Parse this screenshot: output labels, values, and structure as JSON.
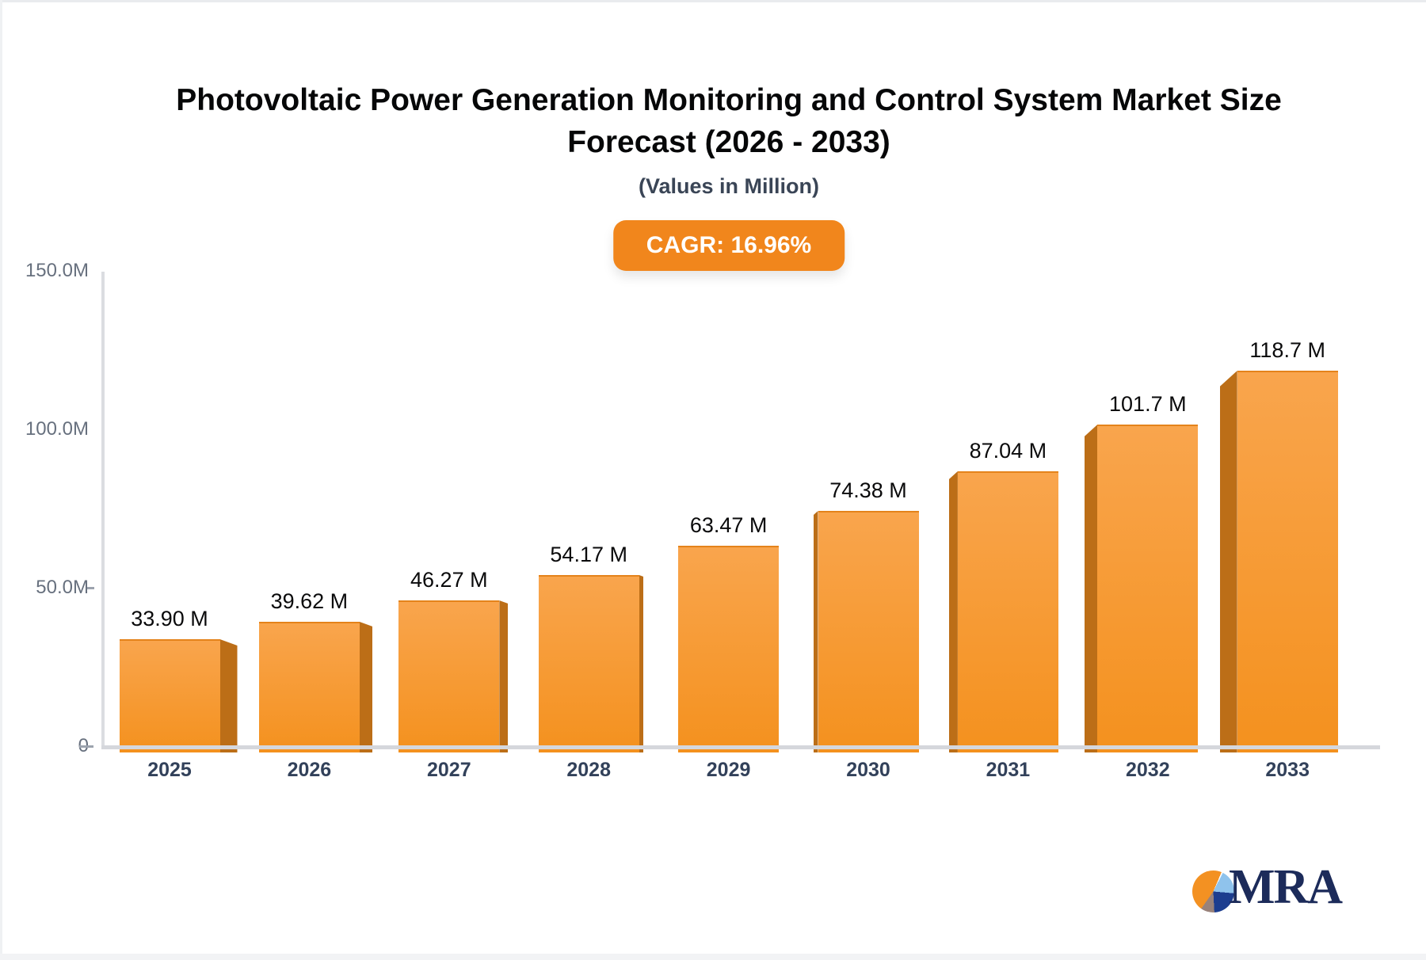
{
  "header": {
    "title_line1": "Photovoltaic Power Generation Monitoring and Control System Market Size",
    "title_line2": "Forecast (2026 - 2033)",
    "subtitle": "(Values in Million)",
    "cagr_label": "CAGR: 16.96%"
  },
  "chart_data": {
    "type": "bar",
    "title": "Photovoltaic Power Generation Monitoring and Control System Market Size Forecast (2026 - 2033)",
    "subtitle": "(Values in Million)",
    "cagr": "CAGR: 16.96%",
    "categories": [
      "2025",
      "2026",
      "2027",
      "2028",
      "2029",
      "2030",
      "2031",
      "2032",
      "2033"
    ],
    "values": [
      33.9,
      39.62,
      46.27,
      54.17,
      63.47,
      74.38,
      87.04,
      101.7,
      118.7
    ],
    "value_labels": [
      "33.90 M",
      "39.62 M",
      "46.27 M",
      "54.17 M",
      "63.47 M",
      "74.38 M",
      "87.04 M",
      "101.7 M",
      "118.7 M"
    ],
    "xlabel": "",
    "ylabel": "",
    "ylim": [
      0,
      150
    ],
    "y_ticks": [
      {
        "label": "150.0M",
        "value": 150,
        "dash": false
      },
      {
        "label": "100.0M",
        "value": 100,
        "dash": false
      },
      {
        "label": "50.0M",
        "value": 50,
        "dash": true
      },
      {
        "label": "0",
        "value": 0,
        "dash": true
      }
    ],
    "grid": false,
    "legend": false,
    "bar_style": "3d",
    "colors": {
      "bar_top": "#f9a54d",
      "bar_bottom": "#f4911e",
      "bar_side": "#bc6e17",
      "accent": "#f1861c",
      "axis": "#dbdde1",
      "baseline": "#d5d7dc"
    }
  },
  "logo": {
    "text": "MRA",
    "text_color": "#1c2b5a",
    "pie_colors": {
      "orange": "#f39122",
      "lightblue": "#8fc3ec",
      "navy": "#1c3d8f",
      "taupe": "#99827a"
    }
  }
}
